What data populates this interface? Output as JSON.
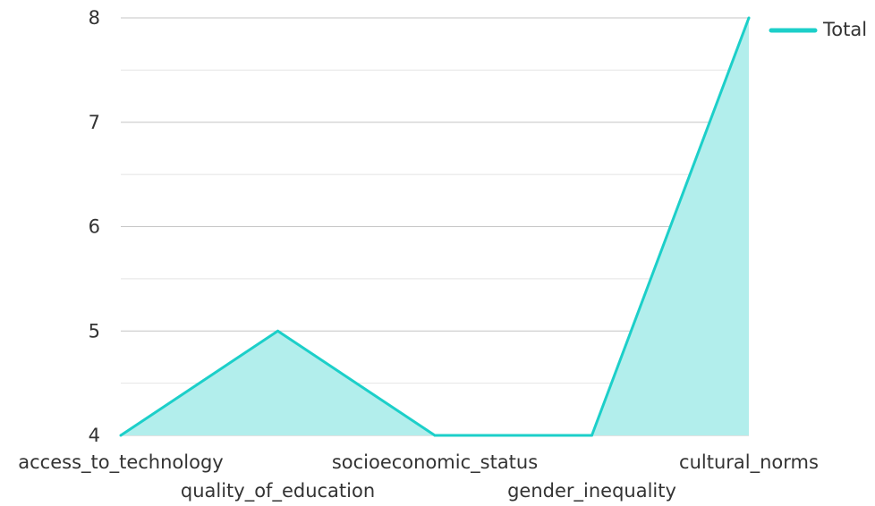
{
  "chart_data": {
    "type": "area",
    "categories": [
      "access_to_technology",
      "quality_of_education",
      "socioeconomic_status",
      "gender_inequality",
      "cultural_norms"
    ],
    "series": [
      {
        "name": "Total",
        "values": [
          4,
          5,
          4,
          4,
          8
        ]
      }
    ],
    "ylim": [
      4,
      8
    ],
    "yticks": [
      "4",
      "5",
      "6",
      "7",
      "8"
    ],
    "grid": true,
    "legend_position": "top-right",
    "colors": {
      "line": "#1ccfc9",
      "fill": "#b2eeec",
      "major_grid": "#c6c6c6",
      "minor_grid": "#e4e4e4"
    }
  }
}
